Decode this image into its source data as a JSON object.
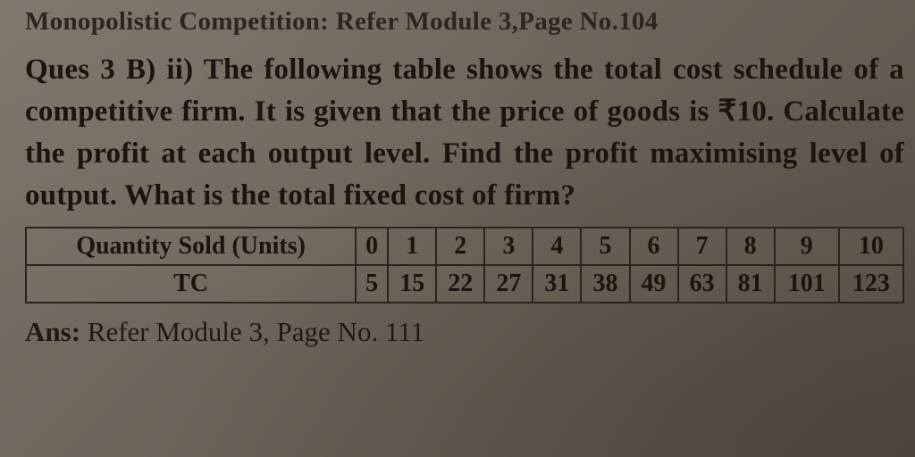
{
  "doc": {
    "pretitle": "Monopolistic Competition: Refer Module 3,Page No.104",
    "question": "Ques 3 B) ii) The following table shows the total cost schedule of a competitive firm. It is given that the price of goods is ₹10. Calculate the profit at each output level. Find the profit maximising level of output. What is the total fixed cost of firm?",
    "answer_label": "Ans:",
    "answer_text": " Refer Module 3, Page No. 111"
  },
  "table": {
    "row1_label": "Quantity Sold (Units)",
    "row2_label": "TC",
    "quantities": [
      "0",
      "1",
      "2",
      "3",
      "4",
      "5",
      "6",
      "7",
      "8",
      "9",
      "10"
    ],
    "tc_values": [
      "5",
      "15",
      "22",
      "27",
      "31",
      "38",
      "49",
      "63",
      "81",
      "101",
      "123"
    ],
    "border_color": "#2a241c",
    "cell_fontsize": 28,
    "label_fontsize": 28
  },
  "style": {
    "background_gradient": [
      "#7a7268",
      "#6b6358",
      "#5a5248"
    ],
    "text_color": "#1a1510",
    "font_family": "Georgia, Times New Roman, serif",
    "pretitle_fontsize": 29,
    "question_fontsize": 33,
    "answer_fontsize": 31
  }
}
